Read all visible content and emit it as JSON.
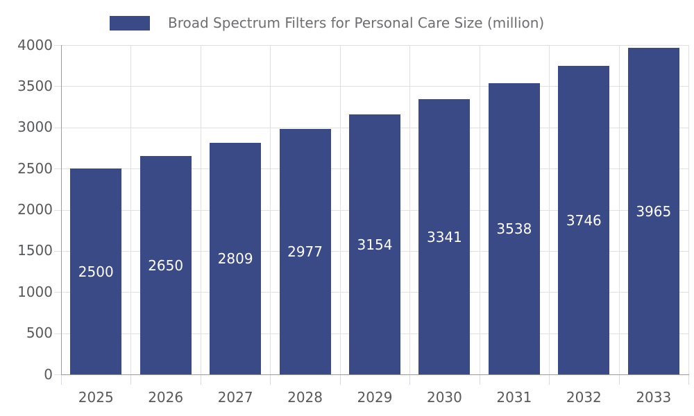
{
  "chart_data": {
    "type": "bar",
    "title": "Broad Spectrum Filters for Personal Care Size (million)",
    "categories": [
      "2025",
      "2026",
      "2027",
      "2028",
      "2029",
      "2030",
      "2031",
      "2032",
      "2033"
    ],
    "values": [
      2500,
      2650,
      2809,
      2977,
      3154,
      3341,
      3538,
      3746,
      3965
    ],
    "xlabel": "",
    "ylabel": "",
    "ylim": [
      0,
      4000
    ],
    "yticks": [
      0,
      500,
      1000,
      1500,
      2000,
      2500,
      3000,
      3500,
      4000
    ],
    "grid": true,
    "legend_position": "top"
  },
  "colors": {
    "bar": "#3a4a86",
    "bar_value_text": "#ffffff",
    "gridline": "#e0e0e0",
    "tick_mark": "#d6d9df",
    "axis_line": "#9b9b9b",
    "tick_label_text": "#58595b",
    "legend_text": "#6d6e71"
  }
}
